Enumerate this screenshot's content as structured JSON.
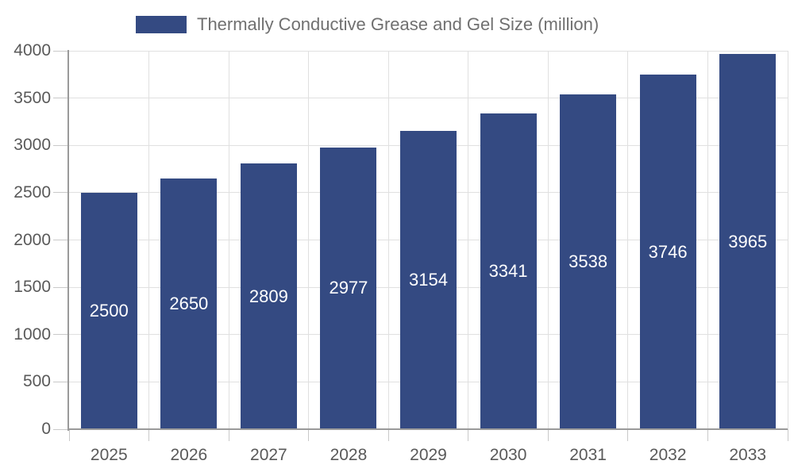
{
  "legend": {
    "label": "Thermally Conductive Grease and Gel Size (million)",
    "swatch_color": "#344A82"
  },
  "chart_data": {
    "type": "bar",
    "title": "",
    "xlabel": "",
    "ylabel": "",
    "categories": [
      "2025",
      "2026",
      "2027",
      "2028",
      "2029",
      "2030",
      "2031",
      "2032",
      "2033"
    ],
    "series": [
      {
        "name": "Thermally Conductive Grease and Gel Size (million)",
        "values": [
          2500,
          2650,
          2809,
          2977,
          3154,
          3341,
          3538,
          3746,
          3965
        ]
      }
    ],
    "value_labels": [
      "2500",
      "2650",
      "2809",
      "2977",
      "3154",
      "3341",
      "3538",
      "3746",
      "3965"
    ],
    "ylim": [
      0,
      4000
    ],
    "yticks": [
      0,
      500,
      1000,
      1500,
      2000,
      2500,
      3000,
      3500,
      4000
    ],
    "ytick_labels": [
      "0",
      "500",
      "1000",
      "1500",
      "2000",
      "2500",
      "3000",
      "3500",
      "4000"
    ],
    "grid": true,
    "legend_position": "top",
    "colors": {
      "bar": "#344A82",
      "value_label": "#ffffff",
      "axis_line": "#9a9a9a",
      "gridline": "#e0e0e0",
      "tick": "#c9c9c9",
      "tick_label": "#595959",
      "legend_text": "#707070",
      "background": "#ffffff"
    }
  }
}
